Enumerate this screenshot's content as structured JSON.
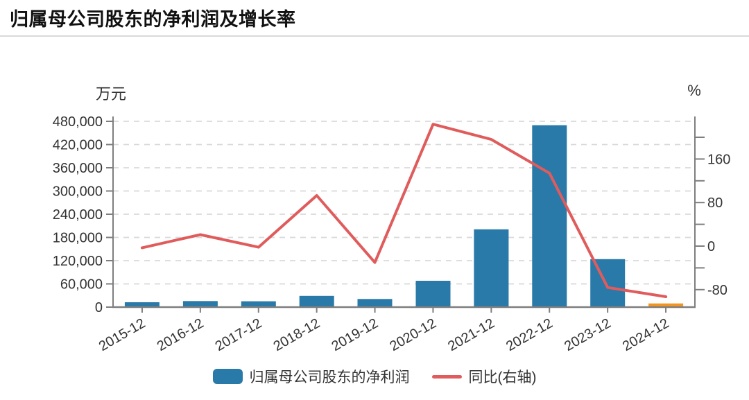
{
  "title": "归属母公司股东的净利润及增长率",
  "colors": {
    "bar": "#2979A9",
    "bar_highlight": "#F39621",
    "line": "#E05C5C",
    "axis": "#7E7E7E",
    "grid": "#D9D9D9",
    "tick_text": "#333333"
  },
  "legend": {
    "bar_label": "归属母公司股东的净利润",
    "line_label": "同比(右轴)"
  },
  "chart_data": {
    "type": "combo-bar-line",
    "title": "归属母公司股东的净利润及增长率",
    "categories": [
      "2015-12",
      "2016-12",
      "2017-12",
      "2018-12",
      "2019-12",
      "2020-12",
      "2021-12",
      "2022-12",
      "2023-12",
      "2024-12"
    ],
    "series": [
      {
        "name": "归属母公司股东的净利润",
        "type": "bar",
        "axis": "left",
        "unit": "万元",
        "values": [
          12500,
          15500,
          15000,
          29000,
          21000,
          68000,
          201000,
          470000,
          124000,
          9500
        ],
        "highlight_index": 9
      },
      {
        "name": "同比(右轴)",
        "type": "line",
        "axis": "right",
        "unit": "%",
        "values": [
          -3,
          21,
          -2,
          93,
          -30,
          224,
          196,
          134,
          -76,
          -93
        ]
      }
    ],
    "left_axis": {
      "unit": "万元",
      "min": 0,
      "max": 480000,
      "tick_step": 60000,
      "tick_labels": [
        "0",
        "60,000",
        "120,000",
        "180,000",
        "240,000",
        "300,000",
        "360,000",
        "420,000",
        "480,000"
      ]
    },
    "right_axis": {
      "unit": "%",
      "labeled_ticks": [
        160,
        80,
        0,
        -80
      ],
      "minor_ticks": [
        200,
        120,
        40,
        -40
      ],
      "approx_range": [
        -112,
        238
      ]
    },
    "grid": "horizontal-dashed",
    "legend_position": "bottom-center"
  }
}
